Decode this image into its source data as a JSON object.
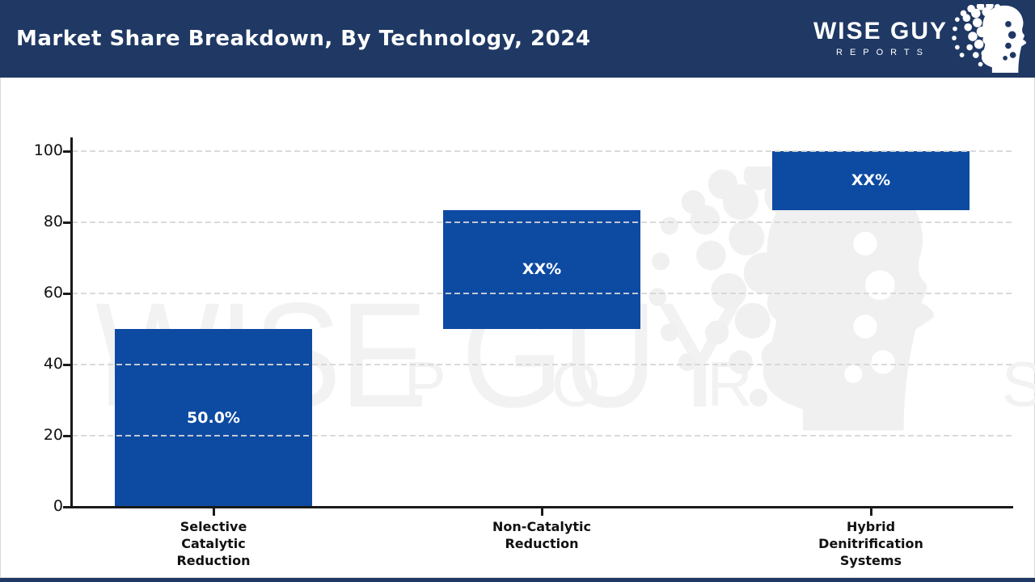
{
  "header": {
    "title": "Market Share Breakdown, By Technology, 2024",
    "bg_color": "#1f3864",
    "logo": {
      "line1": "WISE GUY",
      "line2": "REPORTS"
    }
  },
  "watermark": {
    "line1": "WISE GUY",
    "line2": "R E P O R T S"
  },
  "chart_data": {
    "type": "bar",
    "variant": "waterfall",
    "title": "Market Share Breakdown, By Technology, 2024",
    "categories": [
      "Selective Catalytic Reduction",
      "Non-Catalytic Reduction",
      "Hybrid Denitrification Systems"
    ],
    "category_lines": [
      [
        "Selective",
        "Catalytic",
        "Reduction"
      ],
      [
        "Non-Catalytic",
        "Reduction"
      ],
      [
        "Hybrid",
        "Denitrification",
        "Systems"
      ]
    ],
    "segments": [
      {
        "category": "Selective Catalytic Reduction",
        "start": 0,
        "end": 50.0,
        "value": 50.0,
        "label": "50.0%"
      },
      {
        "category": "Non-Catalytic Reduction",
        "start": 50.0,
        "end": 83.5,
        "value": 33.5,
        "label": "XX%"
      },
      {
        "category": "Hybrid Denitrification Systems",
        "start": 83.5,
        "end": 100.0,
        "value": 16.5,
        "label": "XX%"
      }
    ],
    "yticks": [
      0,
      20,
      40,
      60,
      80,
      100
    ],
    "ylim": [
      0,
      104
    ],
    "xlabel": "",
    "ylabel": "",
    "grid": "horizontal-dashed",
    "legend": "none",
    "bar_color": "#0d4aa2",
    "bar_label_color": "#ffffff",
    "axis_color": "#1a1a1a"
  }
}
